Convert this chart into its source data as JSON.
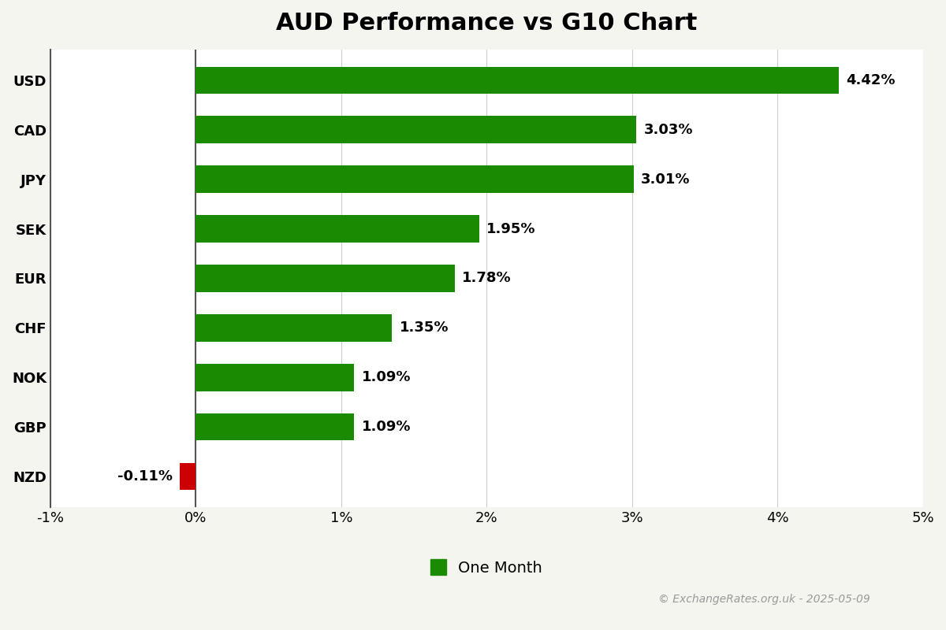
{
  "title": "AUD Performance vs G10 Chart",
  "currencies": [
    "USD",
    "CAD",
    "JPY",
    "SEK",
    "EUR",
    "CHF",
    "NOK",
    "GBP",
    "NZD"
  ],
  "values": [
    4.42,
    3.03,
    3.01,
    1.95,
    1.78,
    1.35,
    1.09,
    1.09,
    -0.11
  ],
  "bar_colors": [
    "#1a8a00",
    "#1a8a00",
    "#1a8a00",
    "#1a8a00",
    "#1a8a00",
    "#1a8a00",
    "#1a8a00",
    "#1a8a00",
    "#cc0000"
  ],
  "positive_color": "#1a8a00",
  "negative_color": "#cc0000",
  "xlim": [
    -1.0,
    5.0
  ],
  "xtick_labels": [
    "-1%",
    "0%",
    "1%",
    "2%",
    "3%",
    "4%",
    "5%"
  ],
  "background_color": "#f5f5f0",
  "plot_background": "#ffffff",
  "title_fontsize": 22,
  "tick_fontsize": 13,
  "label_fontsize": 13,
  "value_fontsize": 13,
  "legend_label": "One Month",
  "copyright_text": "© ExchangeRates.org.uk - 2025-05-09",
  "bar_height": 0.55
}
